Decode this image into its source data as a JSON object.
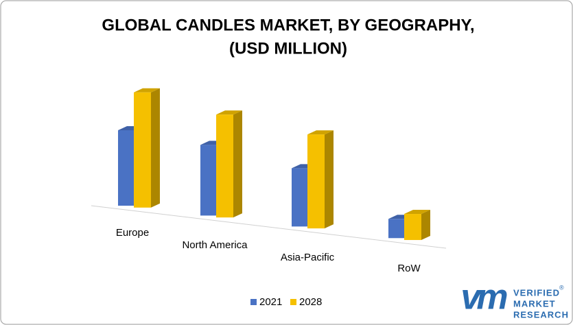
{
  "chart_data": {
    "type": "bar3d",
    "title": "GLOBAL CANDLES MARKET, BY GEOGRAPHY,",
    "subtitle": "(USD MILLION)",
    "categories": [
      "Europe",
      "North America",
      "Asia-Pacific",
      "RoW"
    ],
    "series": [
      {
        "name": "2021",
        "color": "#4a72c4",
        "values": [
          110,
          103,
          85,
          28
        ]
      },
      {
        "name": "2028",
        "color": "#f5c000",
        "values": [
          168,
          150,
          137,
          38
        ]
      }
    ],
    "legend": "bottom"
  },
  "logo": {
    "mark": "vm",
    "lines": [
      "VERIFIED",
      "MARKET",
      "RESEARCH"
    ],
    "registered": "®"
  }
}
